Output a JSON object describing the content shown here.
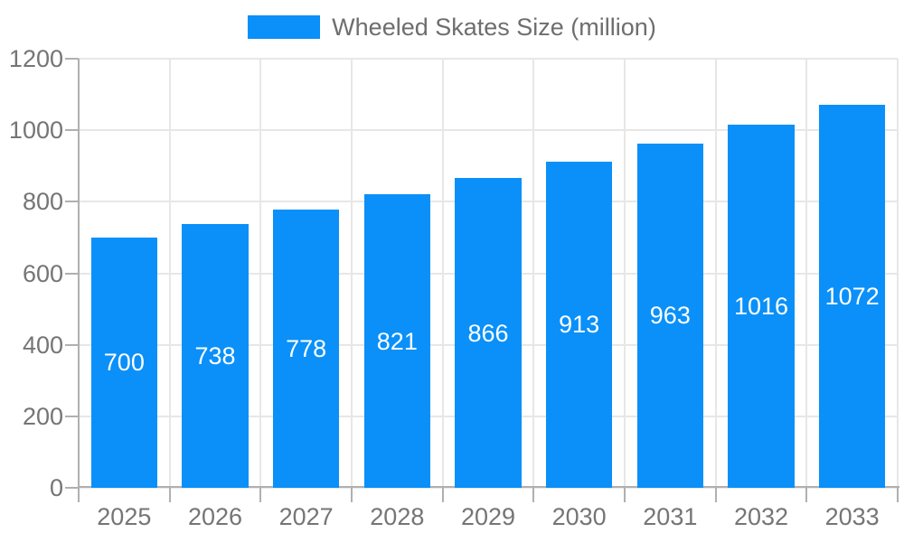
{
  "chart_data": {
    "type": "bar",
    "title": "Wheeled Skates Size (million)",
    "legend": {
      "label": "Wheeled Skates Size (million)",
      "position": "top"
    },
    "categories": [
      "2025",
      "2026",
      "2027",
      "2028",
      "2029",
      "2030",
      "2031",
      "2032",
      "2033"
    ],
    "values": [
      700,
      738,
      778,
      821,
      866,
      913,
      963,
      1016,
      1072
    ],
    "bar_value_labels": [
      "700",
      "738",
      "778",
      "821",
      "866",
      "913",
      "963",
      "1016",
      "1072"
    ],
    "xlabel": "",
    "ylabel": "",
    "ylim": [
      0,
      1200
    ],
    "yticks": [
      0,
      200,
      400,
      600,
      800,
      1000,
      1200
    ],
    "grid": true,
    "colors": {
      "bar": "#0a90f8",
      "bar_label_text": "#ffffff",
      "grid_line": "#e7e7e7",
      "axis_line": "#b0b0b0",
      "tick_label_text": "#757575",
      "legend_text": "#6e6e6e"
    }
  }
}
